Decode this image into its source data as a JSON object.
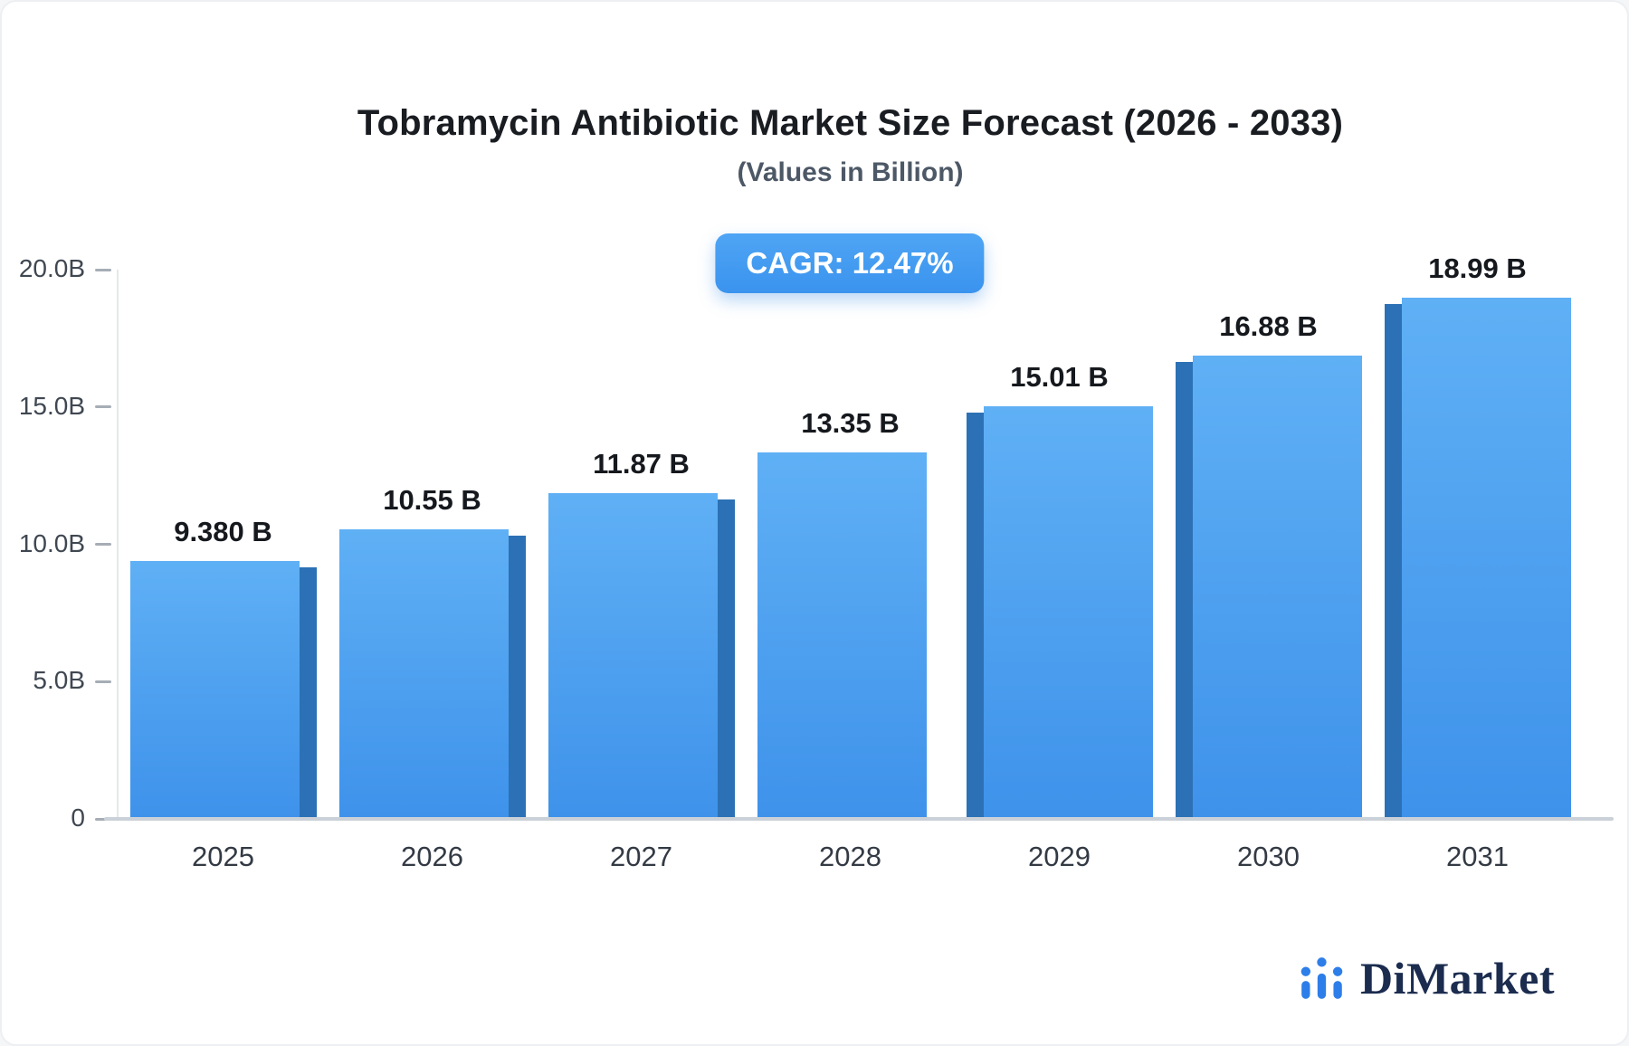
{
  "header": {
    "title": "Tobramycin Antibiotic Market Size Forecast (2026 - 2033)",
    "subtitle": "(Values in Billion)",
    "badge": "CAGR: 12.47%"
  },
  "chart_data": {
    "type": "bar",
    "title": "Tobramycin Antibiotic Market Size Forecast (2026 - 2033)",
    "subtitle": "(Values in Billion)",
    "categories": [
      "2025",
      "2026",
      "2027",
      "2028",
      "2029",
      "2030",
      "2031"
    ],
    "values": [
      9.38,
      10.55,
      11.87,
      13.35,
      15.01,
      16.88,
      18.99
    ],
    "value_labels": [
      "9.380 B",
      "10.55 B",
      "11.87 B",
      "13.35 B",
      "15.01 B",
      "16.88 B",
      "18.99 B"
    ],
    "xlabel": "",
    "ylabel": "",
    "ylim": [
      0,
      20
    ],
    "yticks": [
      {
        "value": 0,
        "label": "0"
      },
      {
        "value": 5,
        "label": "5.0B"
      },
      {
        "value": 10,
        "label": "10.0B"
      },
      {
        "value": 15,
        "label": "15.0B"
      },
      {
        "value": 20,
        "label": "20.0B"
      }
    ],
    "grid": false,
    "legend": false,
    "annotation": "CAGR: 12.47%",
    "colors": {
      "bar_top": "#5FB0F5",
      "bar_bottom": "#3E92EA",
      "bar_side": "#2C71B5",
      "badge_bg": "#3E9BF2",
      "axis_line": "#cbd1d8"
    }
  },
  "footer": {
    "brand": "DiMarket",
    "logo_icon": "bar-chart-logo-icon"
  }
}
